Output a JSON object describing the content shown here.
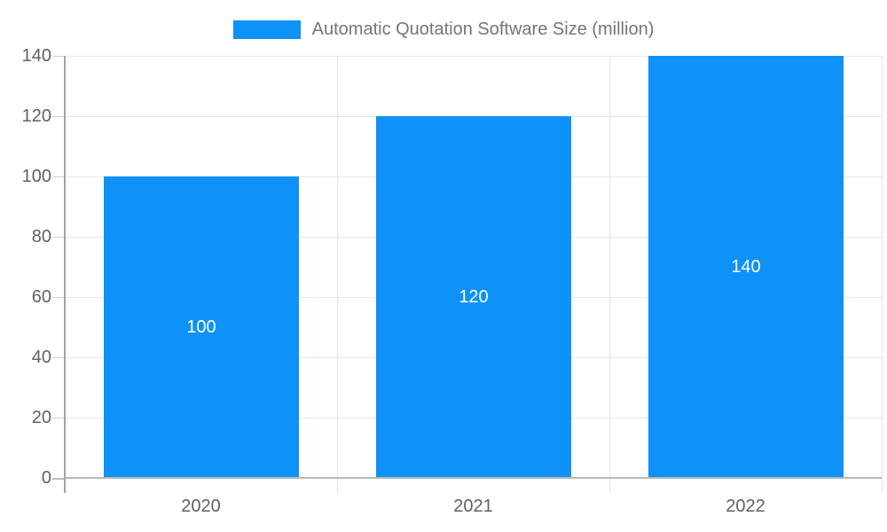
{
  "chart_data": {
    "type": "bar",
    "title": "Automatic Quotation Software Size (million)",
    "categories": [
      "2020",
      "2021",
      "2022"
    ],
    "series": [
      {
        "name": "Automatic Quotation Software Size (million)",
        "values": [
          100,
          120,
          140
        ]
      }
    ],
    "data_labels": [
      "100",
      "120",
      "140"
    ],
    "xlabel": "",
    "ylabel": "",
    "ylim": [
      0,
      140
    ],
    "ytick_step": 20,
    "yticks": [
      0,
      20,
      40,
      60,
      80,
      100,
      120,
      140
    ],
    "grid": true,
    "legend_position": "top"
  },
  "colors": {
    "bar": "#0e92f8",
    "grid": "#e6e6e6",
    "separator": "#e3e3e3",
    "axis_line": "#a3a3a3",
    "baseline": "#b9b9b9",
    "tick_mark": "#d0d0d0",
    "tick_text": "#616161",
    "legend_text": "#757575",
    "data_label_text": "#ffffff",
    "background": "#ffffff"
  }
}
